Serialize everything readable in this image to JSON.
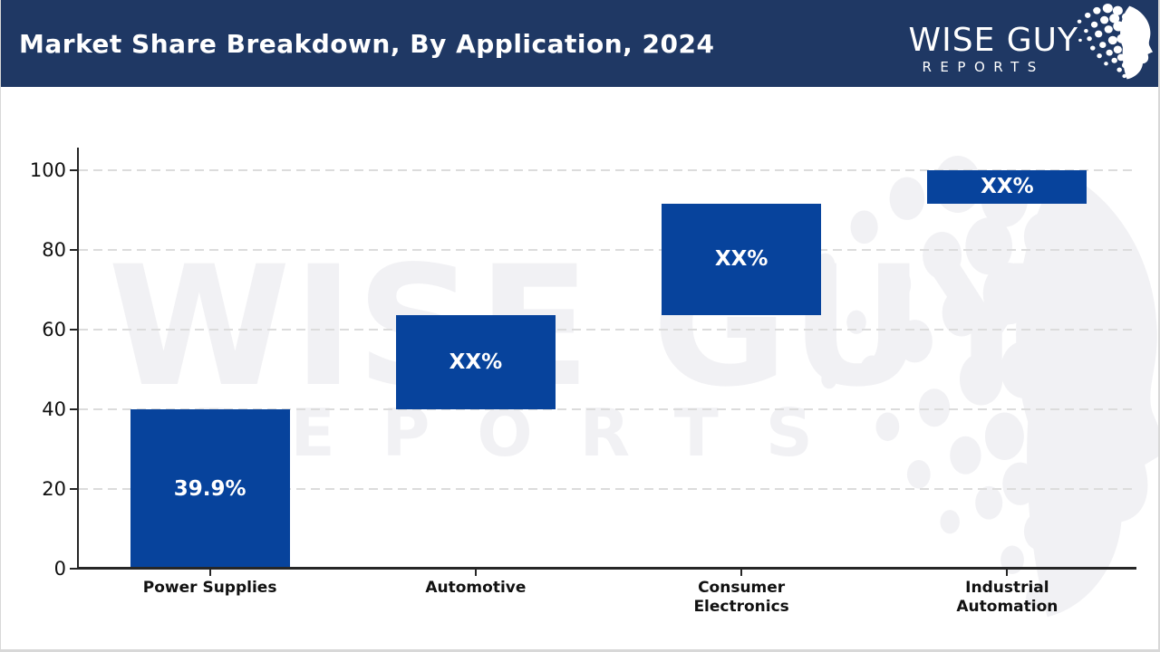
{
  "header": {
    "title": "Market Share Breakdown, By Application, 2024",
    "logo": {
      "wordmark": "WISE GUY",
      "reports": "REPORTS"
    }
  },
  "watermark": {
    "wordmark": "WISE GUY",
    "reports": "REPORTS"
  },
  "colors": {
    "header_bg": "#1f3864",
    "bar": "#07439c",
    "bar_label": "#ffffff",
    "grid": "#dcdcdc",
    "axis": "#262626",
    "watermark": "#f1f1f4"
  },
  "chart_data": {
    "type": "bar",
    "subtype": "waterfall",
    "title": "Market Share Breakdown, By Application, 2024",
    "xlabel": "",
    "ylabel": "",
    "ylim": [
      0,
      100
    ],
    "yticks": [
      0,
      20,
      40,
      60,
      80,
      100
    ],
    "grid": "horizontal-dashed",
    "legend": "none",
    "categories": [
      "Power Supplies",
      "Automotive",
      "Consumer Electronics",
      "Industrial Automation"
    ],
    "bars": [
      {
        "category": "Power Supplies",
        "start": 0,
        "end": 39.9,
        "label": "39.9%"
      },
      {
        "category": "Automotive",
        "start": 39.9,
        "end": 63.5,
        "label": "XX%"
      },
      {
        "category": "Consumer Electronics",
        "start": 63.5,
        "end": 91.5,
        "label": "XX%"
      },
      {
        "category": "Industrial Automation",
        "start": 91.5,
        "end": 100,
        "label": "XX%"
      }
    ]
  }
}
